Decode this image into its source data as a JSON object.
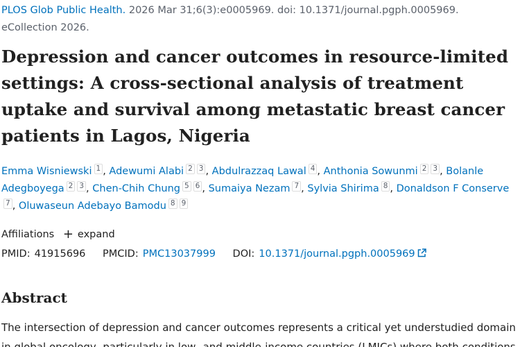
{
  "citation": {
    "journal": "PLOS Glob Public Health.",
    "details": "2026 Mar 31;6(3):e0005969. doi: 10.1371/journal.pgph.0005969. eCollection 2026."
  },
  "title": "Depression and cancer outcomes in resource-limited settings: A cross-sectional analysis of treatment uptake and survival among metastatic breast cancer patients in Lagos, Nigeria",
  "authors": [
    {
      "name": "Emma Wisniewski",
      "affiliations": [
        "1"
      ]
    },
    {
      "name": "Adewumi Alabi",
      "affiliations": [
        "2",
        "3"
      ]
    },
    {
      "name": "Abdulrazzaq Lawal",
      "affiliations": [
        "4"
      ]
    },
    {
      "name": "Anthonia Sowunmi",
      "affiliations": [
        "2",
        "3"
      ]
    },
    {
      "name": "Bolanle Adegboyega",
      "affiliations": [
        "2",
        "3"
      ]
    },
    {
      "name": "Chen-Chih Chung",
      "affiliations": [
        "5",
        "6"
      ]
    },
    {
      "name": "Sumaiya Nezam",
      "affiliations": [
        "7"
      ]
    },
    {
      "name": "Sylvia Shirima",
      "affiliations": [
        "8"
      ]
    },
    {
      "name": "Donaldson F Conserve",
      "affiliations": [
        "7"
      ]
    },
    {
      "name": "Oluwaseun Adebayo Bamodu",
      "affiliations": [
        "8",
        "9"
      ]
    }
  ],
  "affiliations_label": "Affiliations",
  "expand_label": "expand",
  "identifiers": {
    "pmid_label": "PMID:",
    "pmid": "41915696",
    "pmcid_label": "PMCID:",
    "pmcid": "PMC13037999",
    "doi_label": "DOI:",
    "doi": "10.1371/journal.pgph.0005969"
  },
  "abstract_heading": "Abstract",
  "abstract_text": "The intersection of depression and cancer outcomes represents a critical yet understudied domain in global oncology, particularly in low- and middle-income countries (LMICs) where both conditions"
}
